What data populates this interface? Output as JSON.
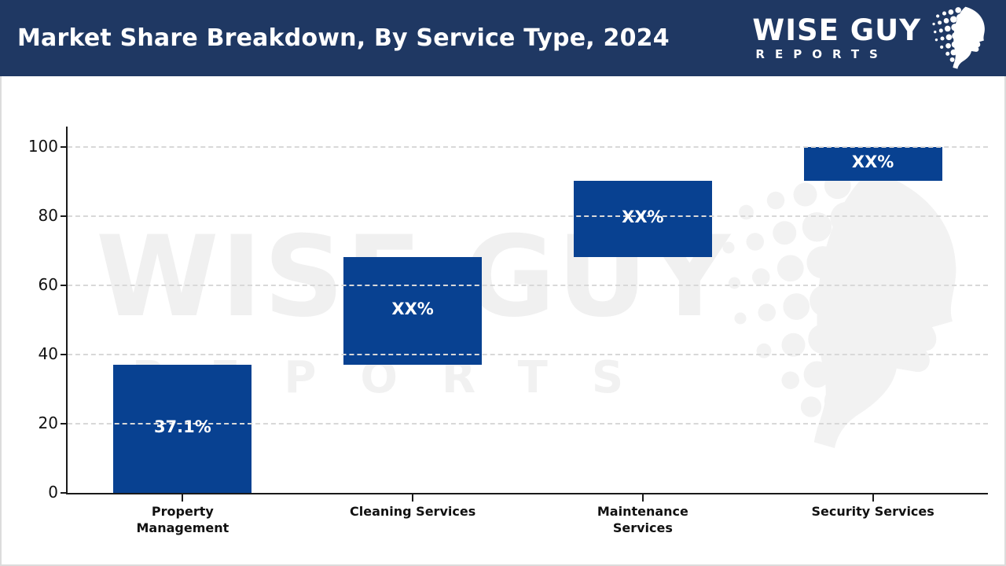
{
  "header": {
    "title": "Market Share Breakdown, By Service Type, 2024",
    "bg_color": "#1f3863",
    "logo": {
      "wordmark": "WISE GUY",
      "subtext": "REPORTS"
    }
  },
  "watermark": {
    "line1": "WISE GUY",
    "line2": "REPORTS"
  },
  "chart_data": {
    "type": "bar",
    "subtype": "waterfall",
    "title": "Market Share Breakdown, By Service Type, 2024",
    "xlabel": "",
    "ylabel": "",
    "ylim": [
      0,
      106
    ],
    "yticks": [
      0,
      20,
      40,
      60,
      80,
      100
    ],
    "grid": "horizontal dashed",
    "legend": "none",
    "bar_color": "#084191",
    "categories": [
      "Property\nManagement",
      "Cleaning Services",
      "Maintenance\nServices",
      "Security Services"
    ],
    "bars": [
      {
        "category": "Property\nManagement",
        "start": 0,
        "end": 37.1,
        "label": "37.1%"
      },
      {
        "category": "Cleaning Services",
        "start": 37.1,
        "end": 68.2,
        "label": "XX%"
      },
      {
        "category": "Maintenance\nServices",
        "start": 68.2,
        "end": 90.3,
        "label": "XX%"
      },
      {
        "category": "Security Services",
        "start": 90.3,
        "end": 100,
        "label": "XX%"
      }
    ]
  }
}
